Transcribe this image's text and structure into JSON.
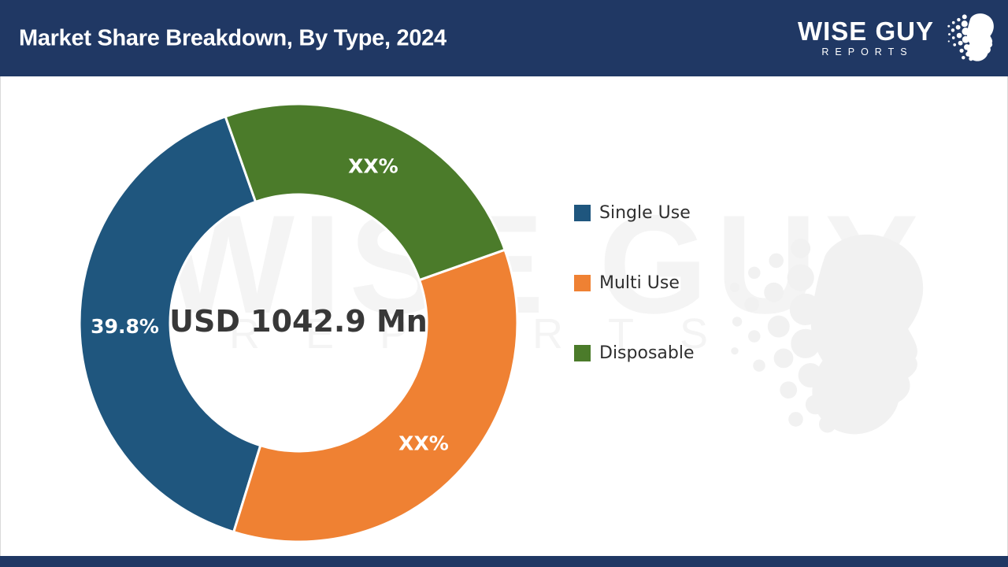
{
  "header": {
    "title": "Market Share Breakdown, By Type, 2024",
    "bg_color": "#203864",
    "logo": {
      "name": "WISE GUY",
      "subtitle": "REPORTS"
    }
  },
  "watermark": {
    "line1": "WISE GUY",
    "line2": "REPORTS"
  },
  "chart_data": {
    "type": "pie",
    "donut": true,
    "title": "Market Share Breakdown, By Type, 2024",
    "center_text": "USD 1042.9 Mn",
    "start_angle_deg": 109.5,
    "direction": "ccw",
    "inner_radius_ratio": 0.586,
    "legend_position": "right",
    "slices": [
      {
        "name": "Single Use",
        "label": "39.8%",
        "value_pct": 39.8,
        "color": "#1f567e"
      },
      {
        "name": "Multi Use",
        "label": "XX%",
        "value_pct": 35.2,
        "color": "#ef8133"
      },
      {
        "name": "Disposable",
        "label": "XX%",
        "value_pct": 25.0,
        "color": "#4b7b2a"
      }
    ]
  }
}
